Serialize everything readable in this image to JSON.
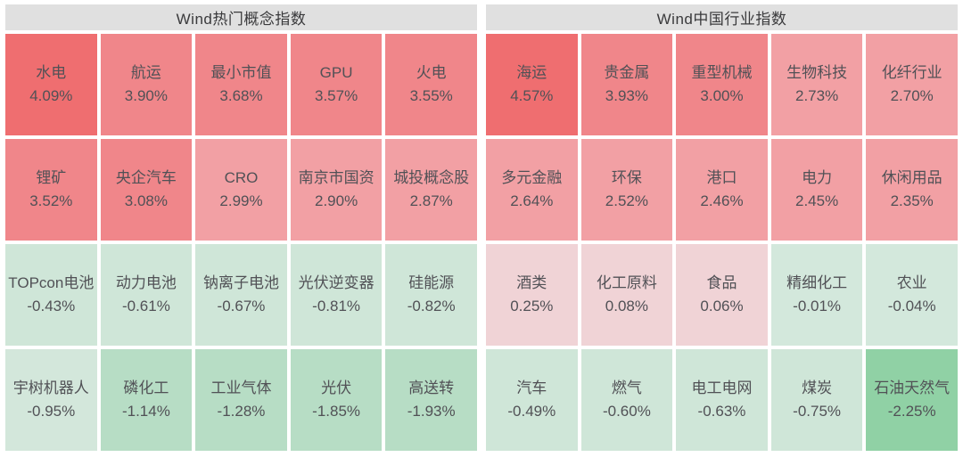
{
  "page": {
    "background": "#ffffff",
    "header_bg": "#e0e0e0",
    "header_text_color": "#3a3a3c",
    "cell_text_color": "#515156"
  },
  "color_scale": {
    "strong_red": "#ef6e70",
    "medium_red": "#f0868a",
    "light_red": "#f2a0a4",
    "pale_pink": "#f0d3d6",
    "pale_green": "#cfe6d8",
    "medium_green": "#b7ddc5",
    "strong_green": "#90d1a5"
  },
  "sections": [
    {
      "title": "Wind热门概念指数",
      "cells": [
        {
          "name": "水电",
          "value": "4.09%",
          "color": "#ef6e70"
        },
        {
          "name": "航运",
          "value": "3.90%",
          "color": "#f0868a"
        },
        {
          "name": "最小市值",
          "value": "3.68%",
          "color": "#f0868a"
        },
        {
          "name": "GPU",
          "value": "3.57%",
          "color": "#f0868a"
        },
        {
          "name": "火电",
          "value": "3.55%",
          "color": "#f0868a"
        },
        {
          "name": "锂矿",
          "value": "3.52%",
          "color": "#f0868a"
        },
        {
          "name": "央企汽车",
          "value": "3.08%",
          "color": "#f0868a"
        },
        {
          "name": "CRO",
          "value": "2.99%",
          "color": "#f2a0a4"
        },
        {
          "name": "南京市国资",
          "value": "2.90%",
          "color": "#f2a0a4"
        },
        {
          "name": "城投概念股",
          "value": "2.87%",
          "color": "#f2a0a4"
        },
        {
          "name": "TOPcon电池",
          "value": "-0.43%",
          "color": "#cfe6d8"
        },
        {
          "name": "动力电池",
          "value": "-0.61%",
          "color": "#cfe6d8"
        },
        {
          "name": "钠离子电池",
          "value": "-0.67%",
          "color": "#cfe6d8"
        },
        {
          "name": "光伏逆变器",
          "value": "-0.81%",
          "color": "#cfe6d8"
        },
        {
          "name": "硅能源",
          "value": "-0.82%",
          "color": "#cfe6d8"
        },
        {
          "name": "宇树机器人",
          "value": "-0.95%",
          "color": "#d3e7db"
        },
        {
          "name": "磷化工",
          "value": "-1.14%",
          "color": "#b7ddc5"
        },
        {
          "name": "工业气体",
          "value": "-1.28%",
          "color": "#b7ddc5"
        },
        {
          "name": "光伏",
          "value": "-1.85%",
          "color": "#b7ddc5"
        },
        {
          "name": "高送转",
          "value": "-1.93%",
          "color": "#b7ddc5"
        }
      ]
    },
    {
      "title": "Wind中国行业指数",
      "cells": [
        {
          "name": "海运",
          "value": "4.57%",
          "color": "#ef6e70"
        },
        {
          "name": "贵金属",
          "value": "3.93%",
          "color": "#f0868a"
        },
        {
          "name": "重型机械",
          "value": "3.00%",
          "color": "#f0868a"
        },
        {
          "name": "生物科技",
          "value": "2.73%",
          "color": "#f2a0a4"
        },
        {
          "name": "化纤行业",
          "value": "2.70%",
          "color": "#f2a0a4"
        },
        {
          "name": "多元金融",
          "value": "2.64%",
          "color": "#f2a0a4"
        },
        {
          "name": "环保",
          "value": "2.52%",
          "color": "#f2a0a4"
        },
        {
          "name": "港口",
          "value": "2.46%",
          "color": "#f2a0a4"
        },
        {
          "name": "电力",
          "value": "2.45%",
          "color": "#f2a0a4"
        },
        {
          "name": "休闲用品",
          "value": "2.35%",
          "color": "#f2a0a4"
        },
        {
          "name": "酒类",
          "value": "0.25%",
          "color": "#f0d3d6"
        },
        {
          "name": "化工原料",
          "value": "0.08%",
          "color": "#f0d3d6"
        },
        {
          "name": "食品",
          "value": "0.06%",
          "color": "#f0d3d6"
        },
        {
          "name": "精细化工",
          "value": "-0.01%",
          "color": "#d3e8dc"
        },
        {
          "name": "农业",
          "value": "-0.04%",
          "color": "#d3e8dc"
        },
        {
          "name": "汽车",
          "value": "-0.49%",
          "color": "#cfe6d8"
        },
        {
          "name": "燃气",
          "value": "-0.60%",
          "color": "#cfe6d8"
        },
        {
          "name": "电工电网",
          "value": "-0.63%",
          "color": "#cfe6d8"
        },
        {
          "name": "煤炭",
          "value": "-0.75%",
          "color": "#cfe6d8"
        },
        {
          "name": "石油天然气",
          "value": "-2.25%",
          "color": "#90d1a5"
        }
      ]
    }
  ],
  "chart_data": [
    {
      "type": "heatmap",
      "title": "Wind热门概念指数",
      "grid": {
        "rows": 4,
        "cols": 5
      },
      "categories": [
        "水电",
        "航运",
        "最小市值",
        "GPU",
        "火电",
        "锂矿",
        "央企汽车",
        "CRO",
        "南京市国资",
        "城投概念股",
        "TOPcon电池",
        "动力电池",
        "钠离子电池",
        "光伏逆变器",
        "硅能源",
        "宇树机器人",
        "磷化工",
        "工业气体",
        "光伏",
        "高送转"
      ],
      "values": [
        4.09,
        3.9,
        3.68,
        3.57,
        3.55,
        3.52,
        3.08,
        2.99,
        2.9,
        2.87,
        -0.43,
        -0.61,
        -0.67,
        -0.81,
        -0.82,
        -0.95,
        -1.14,
        -1.28,
        -1.85,
        -1.93
      ],
      "unit": "%",
      "color_rule": "red for gains, green for losses, intensity by magnitude"
    },
    {
      "type": "heatmap",
      "title": "Wind中国行业指数",
      "grid": {
        "rows": 4,
        "cols": 5
      },
      "categories": [
        "海运",
        "贵金属",
        "重型机械",
        "生物科技",
        "化纤行业",
        "多元金融",
        "环保",
        "港口",
        "电力",
        "休闲用品",
        "酒类",
        "化工原料",
        "食品",
        "精细化工",
        "农业",
        "汽车",
        "燃气",
        "电工电网",
        "煤炭",
        "石油天然气"
      ],
      "values": [
        4.57,
        3.93,
        3.0,
        2.73,
        2.7,
        2.64,
        2.52,
        2.46,
        2.45,
        2.35,
        0.25,
        0.08,
        0.06,
        -0.01,
        -0.04,
        -0.49,
        -0.6,
        -0.63,
        -0.75,
        -2.25
      ],
      "unit": "%",
      "color_rule": "red for gains, green for losses, intensity by magnitude"
    }
  ]
}
